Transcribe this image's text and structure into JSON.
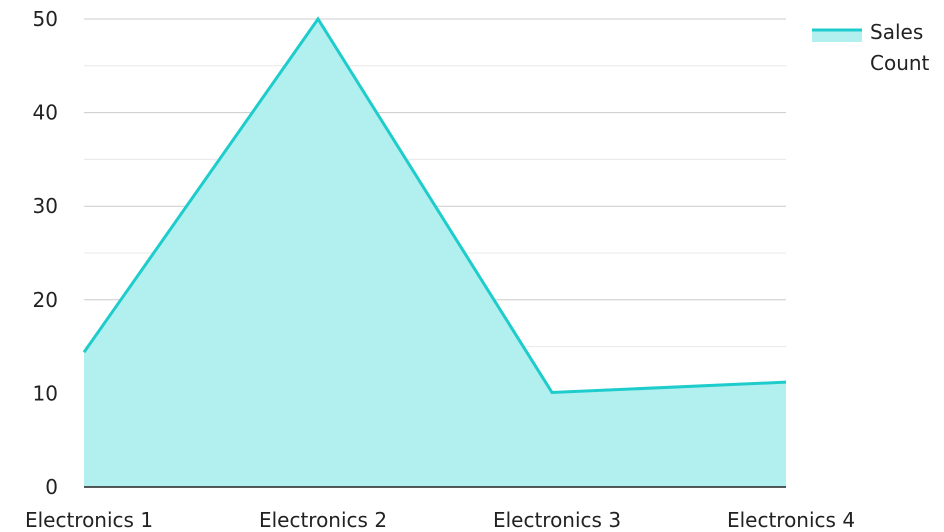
{
  "chart_data": {
    "type": "area",
    "categories": [
      "Electronics 1",
      "Electronics 2",
      "Electronics 3",
      "Electronics 4"
    ],
    "series": [
      {
        "name": "Sales Count",
        "legend_lines": [
          "Sales",
          "Count"
        ],
        "values": [
          14.4,
          50,
          10.1,
          11.2
        ],
        "color": "#1fcccc",
        "fill": "#b2efef"
      }
    ],
    "y_ticks": [
      0,
      10,
      20,
      30,
      40,
      50
    ],
    "ylim": [
      0,
      50
    ],
    "grid": true,
    "minor_grid": true,
    "legend_position": "top-right",
    "gridline_color": "#cccccc",
    "minor_gridline_color": "#e8e8e8",
    "axis_color": "#222222"
  }
}
